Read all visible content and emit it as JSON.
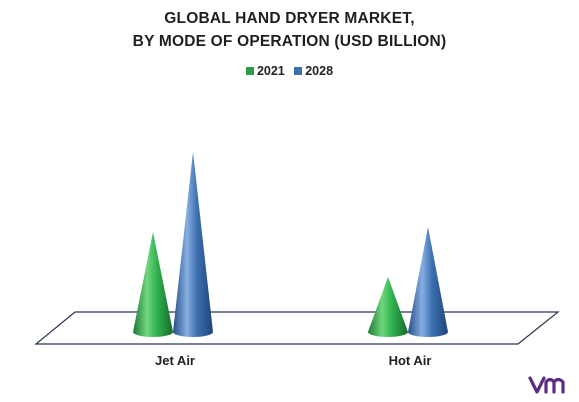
{
  "chart_data": {
    "type": "bar",
    "title_lines": [
      "GLOBAL HAND DRYER MARKET,",
      "BY MODE OF OPERATION (USD BILLION)"
    ],
    "categories": [
      "Jet Air",
      "Hot Air"
    ],
    "series": [
      {
        "name": "2021",
        "values": [
          2.0,
          1.1
        ],
        "color": "#2e9e4a"
      },
      {
        "name": "2028",
        "values": [
          3.6,
          2.1
        ],
        "color": "#3d6fb0"
      }
    ],
    "legend_position": "top-center",
    "value_axis_visible": false,
    "grid": false,
    "shape": "cone"
  },
  "brand": {
    "logo_color": "#5b2c83"
  }
}
